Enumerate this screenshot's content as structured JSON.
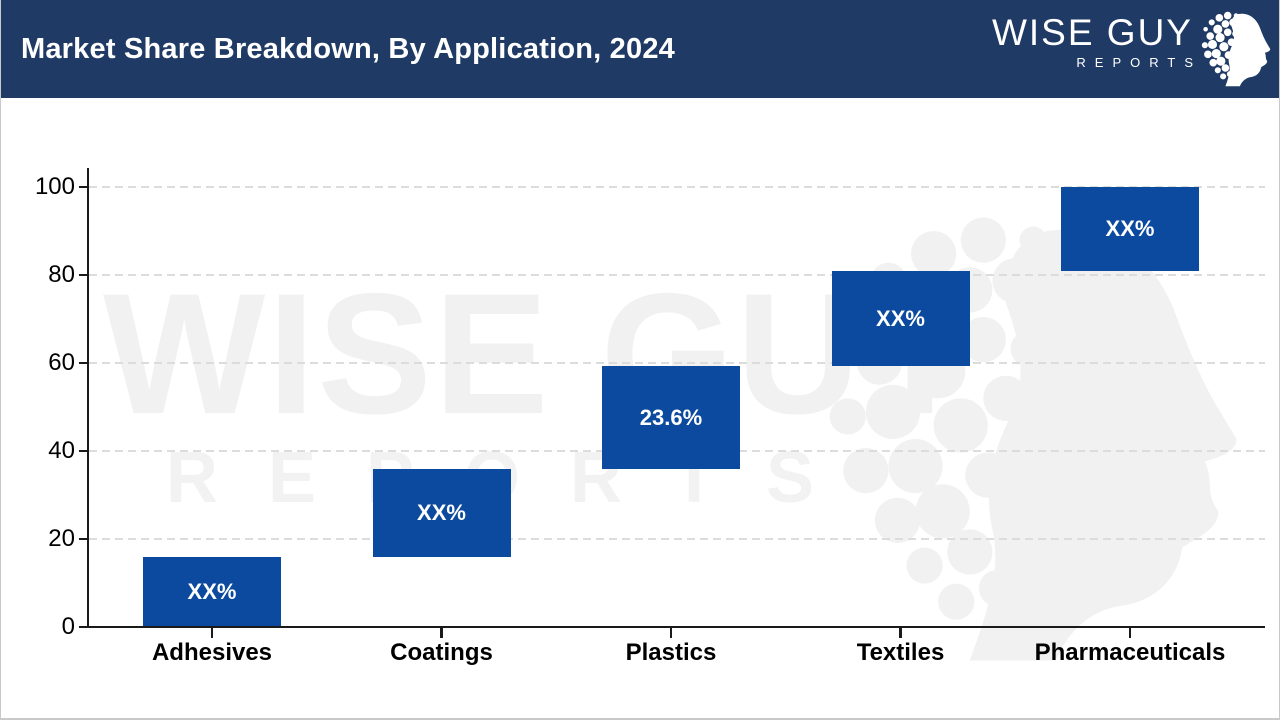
{
  "header": {
    "title": "Market Share Breakdown, By Application, 2024"
  },
  "logo": {
    "line1": "WISE GUY",
    "line2": "REPORTS"
  },
  "watermark": {
    "line1": "WISE GUY",
    "line2": "REPORTS"
  },
  "chart_data": {
    "type": "bar",
    "variant": "waterfall",
    "title": "Market Share Breakdown, By Application, 2024",
    "categories": [
      "Adhesives",
      "Coatings",
      "Plastics",
      "Textiles",
      "Pharmaceuticals"
    ],
    "bars": [
      {
        "category": "Adhesives",
        "start": 0,
        "end": 16.0,
        "value_label": "XX%"
      },
      {
        "category": "Coatings",
        "start": 16.0,
        "end": 35.8,
        "value_label": "XX%"
      },
      {
        "category": "Plastics",
        "start": 35.8,
        "end": 59.4,
        "value_label": "23.6%"
      },
      {
        "category": "Textiles",
        "start": 59.4,
        "end": 80.8,
        "value_label": "XX%"
      },
      {
        "category": "Pharmaceuticals",
        "start": 80.8,
        "end": 100.0,
        "value_label": "XX%"
      }
    ],
    "xlabel": "",
    "ylabel": "",
    "ylim": [
      0,
      100
    ],
    "yticks": [
      "0",
      "20",
      "40",
      "60",
      "80",
      "100"
    ],
    "legend": "none",
    "grid": "horizontal-dashed"
  },
  "colors": {
    "header_bg": "#203a66",
    "bar": "#0b4a9e",
    "bar_label": "#ffffff",
    "axis": "#1a1a1a",
    "gridline": "#dcdcdc",
    "watermark": "#f1f1f1",
    "title_text": "#ffffff"
  }
}
